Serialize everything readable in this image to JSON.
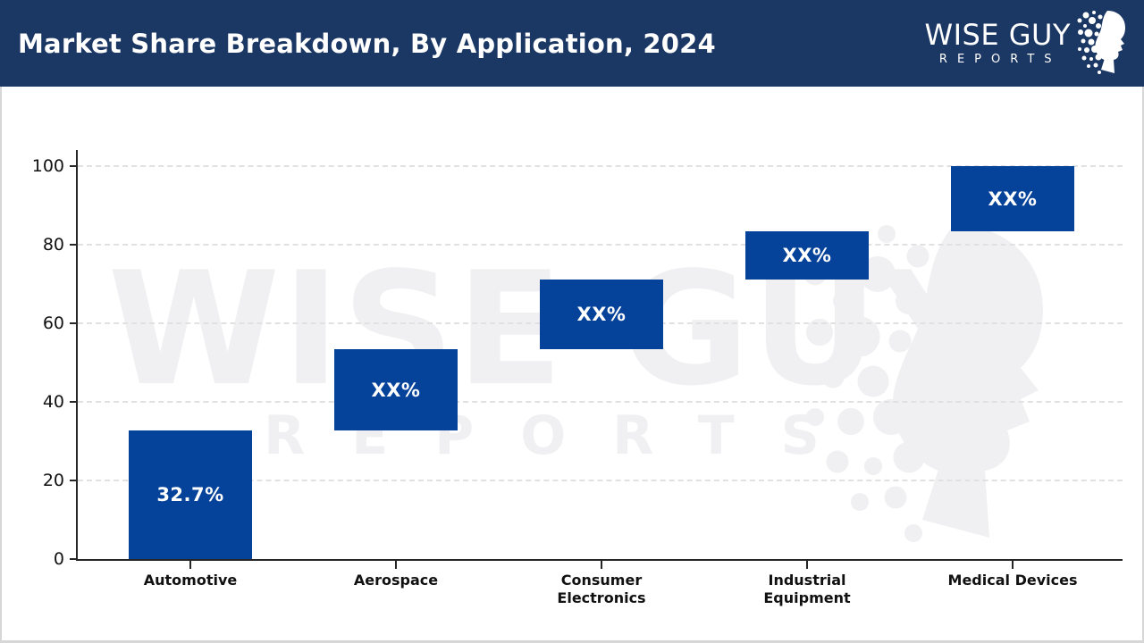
{
  "header": {
    "title": "Market Share Breakdown, By Application, 2024",
    "background_color": "#1b3764",
    "logo": {
      "line1": "WISE GUY",
      "line2": "REPORTS"
    }
  },
  "watermark": {
    "line1": "WISE GUY",
    "line2": "REPORTS"
  },
  "chart_data": {
    "type": "bar",
    "subtype": "waterfall-stacked",
    "title": "Market Share Breakdown, By Application, 2024",
    "categories": [
      "Automotive",
      "Aerospace",
      "Consumer Electronics",
      "Industrial Equipment",
      "Medical Devices"
    ],
    "series": [
      {
        "name": "Market share (%)",
        "segments": [
          {
            "category": "Automotive",
            "start": 0,
            "end": 32.7,
            "label": "32.7%"
          },
          {
            "category": "Aerospace",
            "start": 32.7,
            "end": 53.4,
            "label": "XX%"
          },
          {
            "category": "Consumer Electronics",
            "start": 53.4,
            "end": 71.2,
            "label": "XX%"
          },
          {
            "category": "Industrial Equipment",
            "start": 71.2,
            "end": 83.3,
            "label": "XX%"
          },
          {
            "category": "Medical Devices",
            "start": 83.3,
            "end": 100,
            "label": "XX%"
          }
        ]
      }
    ],
    "y_ticks": [
      0,
      20,
      40,
      60,
      80,
      100
    ],
    "ylim": [
      0,
      104
    ],
    "xlabel": "",
    "ylabel": "",
    "grid": "horizontal-dashed",
    "legend": "none",
    "bar_color": "#05429a",
    "bar_label_color": "#ffffff",
    "axis_color": "#262626",
    "gridline_color": "#e1e1e1"
  }
}
